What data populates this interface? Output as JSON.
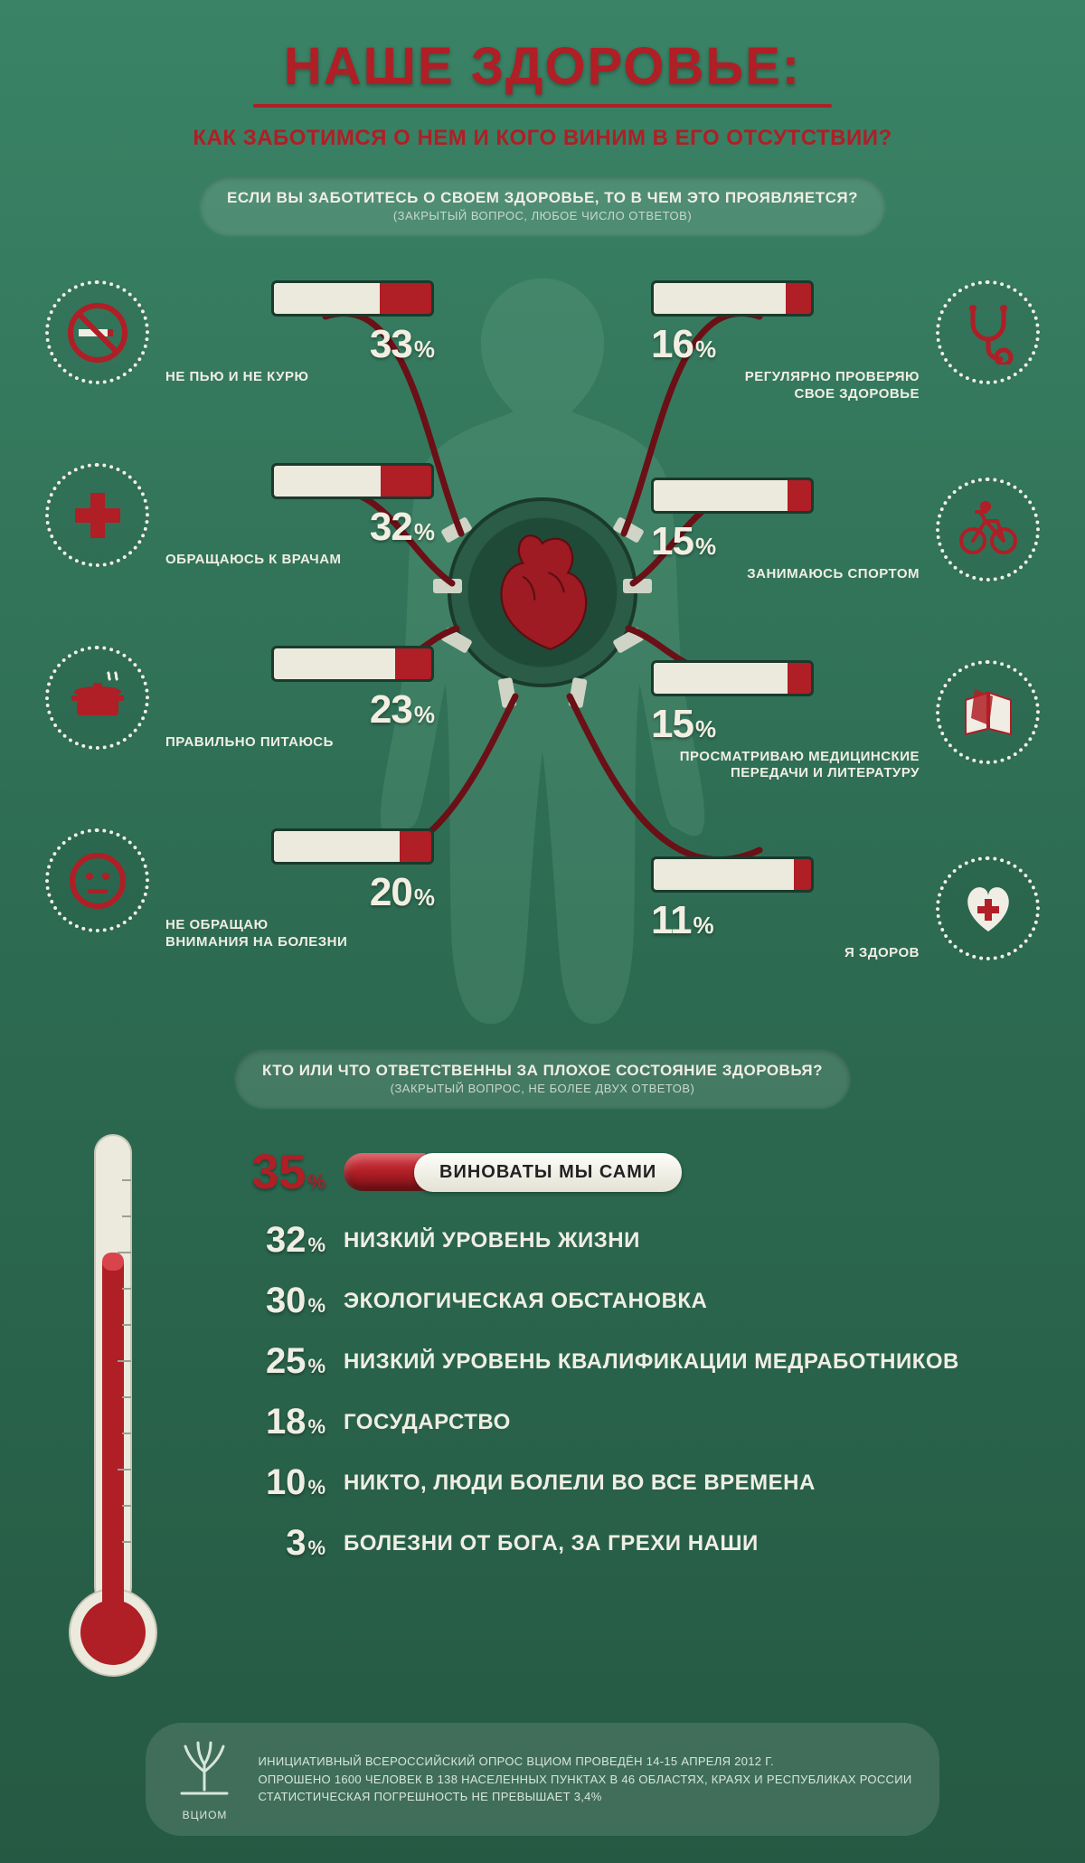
{
  "colors": {
    "accent_red": "#b01e26",
    "dark_red": "#7d1218",
    "cream": "#f0eee4",
    "bg_top": "#3a8366",
    "bg_mid": "#2d6b52",
    "bg_bot": "#255943",
    "battery_border": "#1a3a2c",
    "battery_empty": "#eceadd",
    "heart_ring": "#2a5c47",
    "silhouette": "#6aa98c"
  },
  "title": "НАШЕ ЗДОРОВЬЕ:",
  "subtitle": "КАК ЗАБОТИМСЯ О НЕМ  И КОГО ВИНИМ В ЕГО ОТСУТСТВИИ?",
  "section1": {
    "question": "ЕСЛИ ВЫ ЗАБОТИТЕСЬ О СВОЕМ ЗДОРОВЬЕ, ТО В ЧЕМ ЭТО ПРОЯВЛЯЕТСЯ?",
    "question_sub": "(ЗАКРЫТЫЙ ВОПРОС, ЛЮБОЕ ЧИСЛО ОТВЕТОВ)",
    "left": [
      {
        "icon": "no-smoking",
        "pct": 33,
        "label": "НЕ ПЬЮ И НЕ КУРЮ"
      },
      {
        "icon": "red-cross",
        "pct": 32,
        "label": "ОБРАЩАЮСЬ К ВРАЧАМ"
      },
      {
        "icon": "pot",
        "pct": 23,
        "label": "ПРАВИЛЬНО ПИТАЮСЬ"
      },
      {
        "icon": "face",
        "pct": 20,
        "label": "НЕ ОБРАЩАЮ\nВНИМАНИЯ НА БОЛЕЗНИ"
      }
    ],
    "right": [
      {
        "icon": "stethoscope",
        "pct": 16,
        "label": "РЕГУЛЯРНО ПРОВЕРЯЮ\nСВОЕ ЗДОРОВЬЕ"
      },
      {
        "icon": "bicycle",
        "pct": 15,
        "label": "ЗАНИМАЮСЬ СПОРТОМ"
      },
      {
        "icon": "book",
        "pct": 15,
        "label": "ПРОСМАТРИВАЮ МЕДИЦИНСКИЕ\nПЕРЕДАЧИ И ЛИТЕРАТУРУ"
      },
      {
        "icon": "heart-plus",
        "pct": 11,
        "label": "Я ЗДОРОВ"
      }
    ],
    "battery_max_pct": 100,
    "heart_color": "#9e1b23"
  },
  "section2": {
    "question": "КТО ИЛИ ЧТО ОТВЕТСТВЕННЫ ЗА ПЛОХОЕ СОСТОЯНИЕ ЗДОРОВЬЯ?",
    "question_sub": "(ЗАКРЫТЫЙ ВОПРОС, НЕ БОЛЕЕ ДВУХ ОТВЕТОВ)",
    "thermometer_fill_pct": 72,
    "items": [
      {
        "pct": 35,
        "label": "ВИНОВАТЫ МЫ САМИ",
        "highlight": true
      },
      {
        "pct": 32,
        "label": "НИЗКИЙ УРОВЕНЬ ЖИЗНИ"
      },
      {
        "pct": 30,
        "label": "ЭКОЛОГИЧЕСКАЯ ОБСТАНОВКА"
      },
      {
        "pct": 25,
        "label": "НИЗКИЙ УРОВЕНЬ КВАЛИФИКАЦИИ МЕДРАБОТНИКОВ"
      },
      {
        "pct": 18,
        "label": "ГОСУДАРСТВО"
      },
      {
        "pct": 10,
        "label": "НИКТО, ЛЮДИ БОЛЕЛИ ВО ВСЕ ВРЕМЕНА"
      },
      {
        "pct": 3,
        "label": "БОЛЕЗНИ ОТ БОГА, ЗА ГРЕХИ НАШИ"
      }
    ]
  },
  "footer": {
    "brand": "ВЦИОМ",
    "line1": "ИНИЦИАТИВНЫЙ ВСЕРОССИЙСКИЙ ОПРОС ВЦИОМ ПРОВЕДЁН 14-15 АПРЕЛЯ 2012 Г.",
    "line2": "ОПРОШЕНО 1600 ЧЕЛОВЕК В 138 НАСЕЛЕННЫХ ПУНКТАХ В 46 ОБЛАСТЯХ, КРАЯХ И РЕСПУБЛИКАХ РОССИИ",
    "line3": "СТАТИСТИЧЕСКАЯ ПОГРЕШНОСТЬ НЕ ПРЕВЫШАЕТ 3,4%"
  }
}
